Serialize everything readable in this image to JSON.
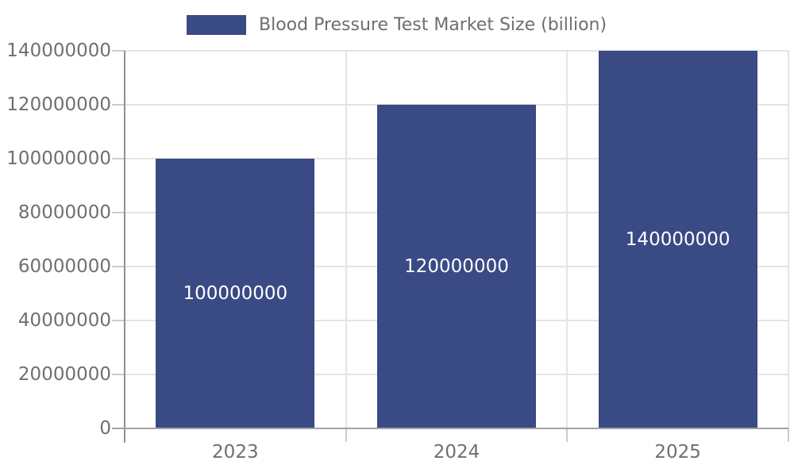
{
  "legend": {
    "label": "Blood Pressure Test Market Size (billion)",
    "swatch_color": "#3a4a85"
  },
  "chart_data": {
    "type": "bar",
    "title": "Blood Pressure Test Market Size (billion)",
    "categories": [
      "2023",
      "2024",
      "2025"
    ],
    "values": [
      100000000,
      120000000,
      140000000
    ],
    "data_labels": [
      "100000000",
      "120000000",
      "140000000"
    ],
    "xlabel": "",
    "ylabel": "",
    "ylim": [
      0,
      140000000
    ],
    "ytick_step": 20000000,
    "ytick_labels": [
      "0",
      "20000000",
      "40000000",
      "60000000",
      "80000000",
      "100000000",
      "120000000",
      "140000000"
    ],
    "grid": true,
    "legend_position": "top",
    "bar_color": "#3a4a85",
    "data_label_color": "#ffffff"
  },
  "colors": {
    "gridline": "#e4e4e4",
    "tick": "#cccccc",
    "axis_y": "#8f8f8f",
    "axis_x": "#a3a3a3",
    "tick_text": "#6f6f6f",
    "legend_text": "#6e6e6e",
    "background": "#ffffff"
  }
}
